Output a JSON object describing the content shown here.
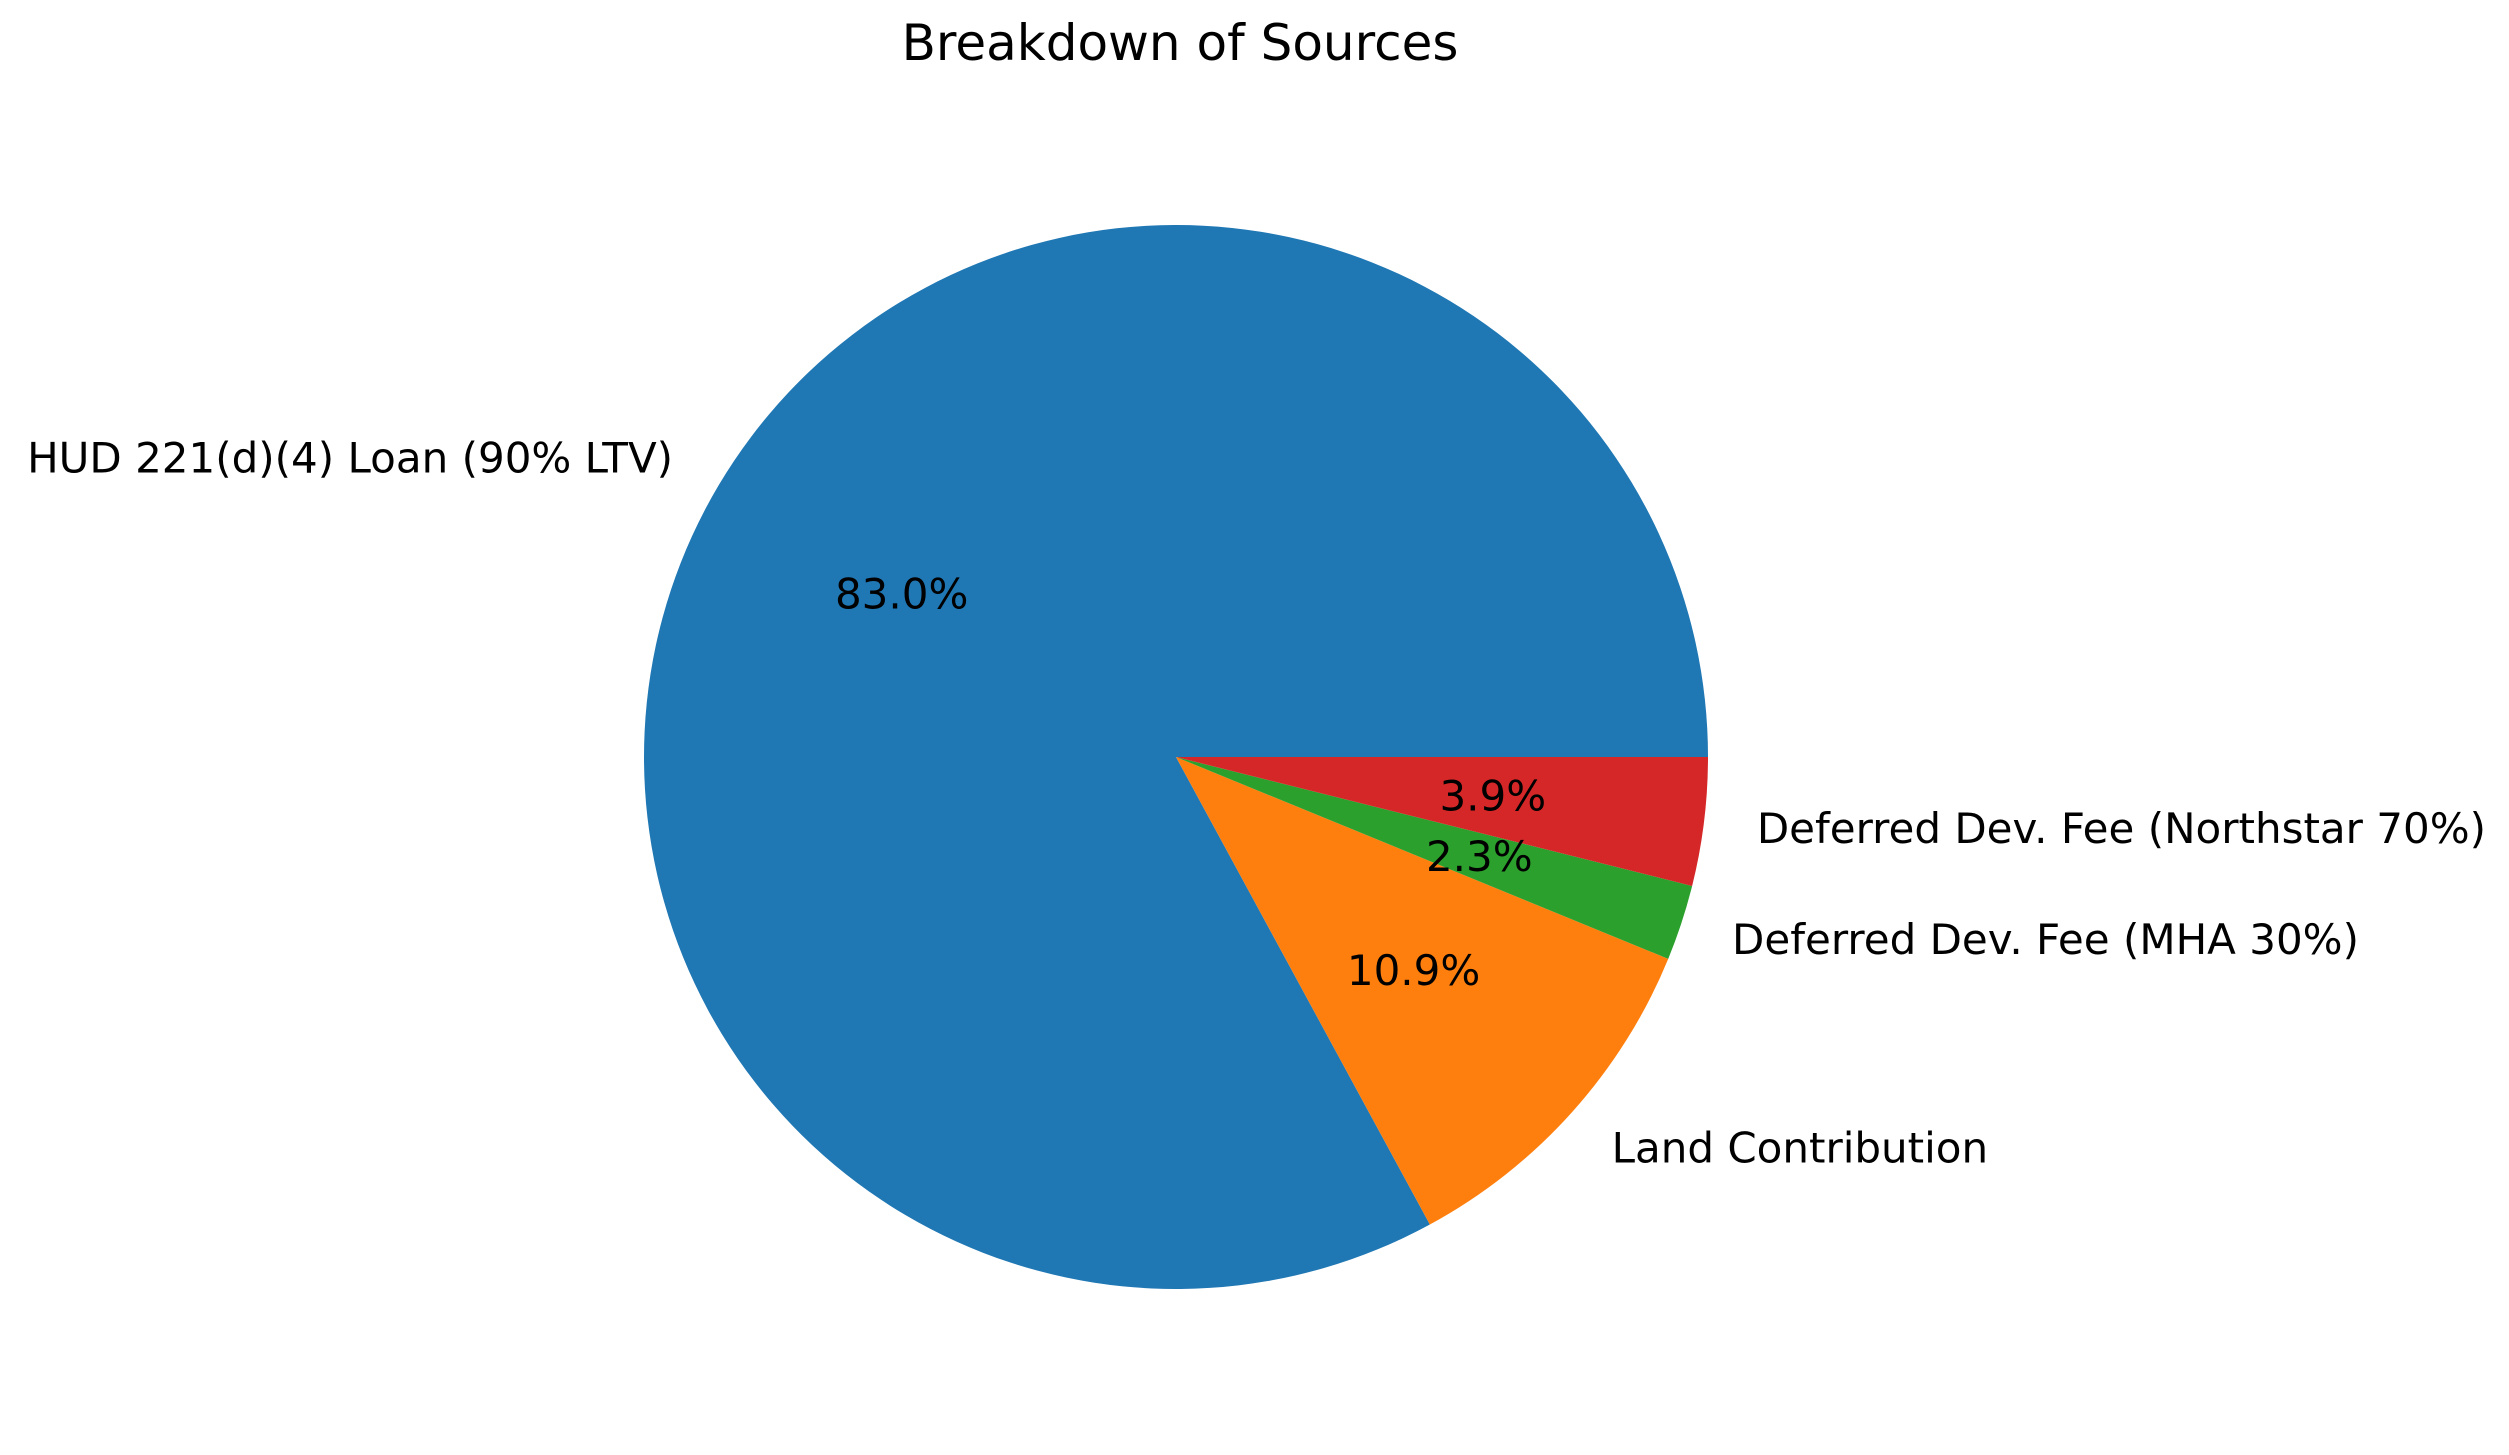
{
  "title": "Breakdown of Sources",
  "colors": {
    "background": "#ffffff",
    "text": "#000000"
  },
  "chart_data": {
    "type": "pie",
    "title": "Breakdown of Sources",
    "labels": [
      "HUD 221(d)(4) Loan (90% LTV)",
      "Land Contribution",
      "Deferred Dev. Fee (MHA 30%)",
      "Deferred Dev. Fee (Northstar 70%)"
    ],
    "values": [
      83.0,
      10.9,
      2.3,
      3.9
    ],
    "autopct_labels": [
      "83.0%",
      "10.9%",
      "2.3%",
      "3.9%"
    ],
    "slice_colors": [
      "#1f77b4",
      "#ff7f0e",
      "#2ca02c",
      "#d62728"
    ],
    "start_angle_deg": 0,
    "direction": "counterclockwise",
    "label_distance": 1.1,
    "pct_distance": 0.6,
    "center": [
      1176,
      757
    ],
    "radius": 532,
    "legend": false,
    "grid": false
  }
}
